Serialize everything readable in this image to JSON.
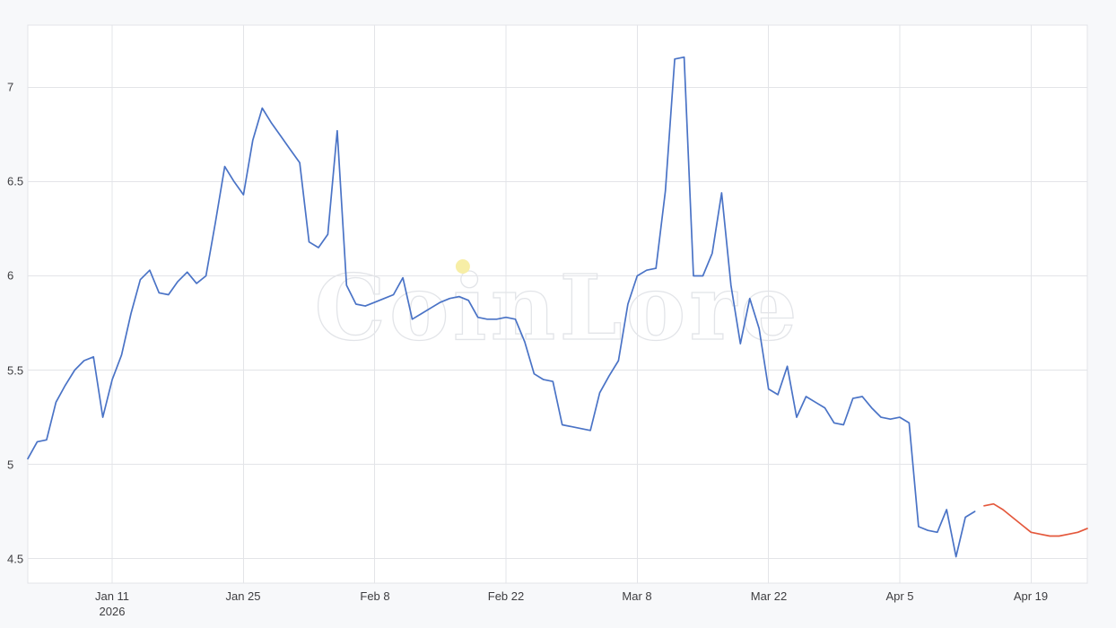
{
  "style": {
    "page_background": "#f7f8fa",
    "plot_background": "#ffffff",
    "grid_color": "#e3e4e8",
    "axis_label_color": "#3d3d40",
    "price_line_color": "#4a73c6",
    "forecast_line_color": "#e4583c",
    "highlight_dot_color": "#f7eda1"
  },
  "watermark": {
    "text": "CoinLore"
  },
  "chart_data": {
    "type": "line",
    "title": "",
    "legend": "none",
    "grid": true,
    "ylim": [
      4.37,
      7.33
    ],
    "xlim_days": [
      0,
      113
    ],
    "y_ticks": [
      {
        "value": 4.5,
        "label": "4.5"
      },
      {
        "value": 5,
        "label": "5"
      },
      {
        "value": 5.5,
        "label": "5.5"
      },
      {
        "value": 6,
        "label": "6"
      },
      {
        "value": 6.5,
        "label": "6.5"
      },
      {
        "value": 7,
        "label": "7"
      }
    ],
    "x_ticks": [
      {
        "day": 9,
        "label": "Jan 11",
        "sublabel": "2026"
      },
      {
        "day": 23,
        "label": "Jan 25"
      },
      {
        "day": 37,
        "label": "Feb 8"
      },
      {
        "day": 51,
        "label": "Feb 22"
      },
      {
        "day": 65,
        "label": "Mar 8"
      },
      {
        "day": 79,
        "label": "Mar 22"
      },
      {
        "day": 93,
        "label": "Apr 5"
      },
      {
        "day": 107,
        "label": "Apr 19"
      }
    ],
    "series": [
      {
        "name": "price-history",
        "color": "#4a73c6",
        "start_day": 0,
        "values": [
          5.03,
          5.12,
          5.13,
          5.33,
          5.42,
          5.5,
          5.55,
          5.57,
          5.25,
          5.45,
          5.58,
          5.8,
          5.98,
          6.03,
          5.91,
          5.9,
          5.97,
          6.02,
          5.96,
          6.0,
          6.28,
          6.58,
          6.5,
          6.43,
          6.72,
          6.89,
          6.81,
          6.74,
          6.67,
          6.6,
          6.18,
          6.15,
          6.22,
          6.77,
          5.95,
          5.85,
          5.84,
          5.86,
          5.88,
          5.9,
          5.99,
          5.77,
          5.8,
          5.83,
          5.86,
          5.88,
          5.89,
          5.87,
          5.78,
          5.77,
          5.77,
          5.78,
          5.77,
          5.65,
          5.48,
          5.45,
          5.44,
          5.21,
          5.2,
          5.19,
          5.18,
          5.38,
          5.47,
          5.55,
          5.85,
          6.0,
          6.03,
          6.04,
          6.45,
          7.15,
          7.16,
          6.0,
          6.0,
          6.12,
          6.44,
          5.95,
          5.64,
          5.88,
          5.72,
          5.4,
          5.37,
          5.52,
          5.25,
          5.36,
          5.33,
          5.3,
          5.22,
          5.21,
          5.35,
          5.36,
          5.3,
          5.25,
          5.24,
          5.25,
          5.22,
          4.67,
          4.65,
          4.64,
          4.76,
          4.51,
          4.72,
          4.75
        ]
      },
      {
        "name": "forecast",
        "color": "#e4583c",
        "start_day": 102,
        "values": [
          4.78,
          4.79,
          4.76,
          4.72,
          4.68,
          4.64,
          4.63,
          4.62,
          4.62,
          4.63,
          4.64,
          4.66
        ]
      }
    ],
    "highlight_point": {
      "day": 46.4,
      "value": 6.05,
      "color": "#f7eda1"
    }
  }
}
